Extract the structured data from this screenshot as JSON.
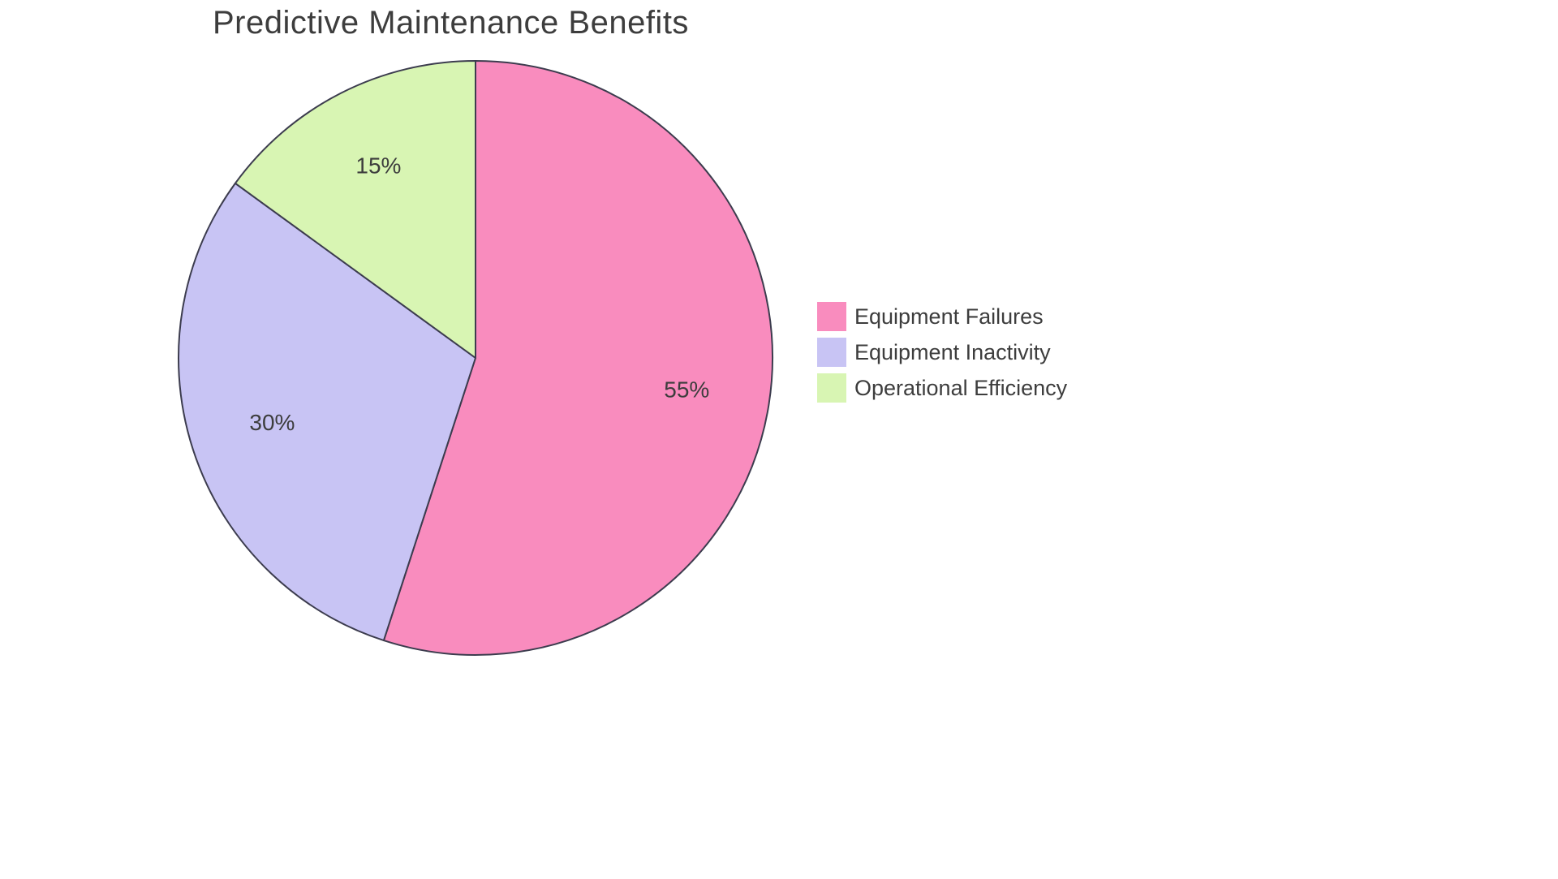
{
  "title": "Predictive Maintenance Benefits",
  "chart_data": {
    "type": "pie",
    "title": "Predictive Maintenance Benefits",
    "labels": [
      "Equipment Failures",
      "Equipment Inactivity",
      "Operational Efficiency"
    ],
    "values": [
      55,
      30,
      15
    ],
    "slice_labels": [
      "55%",
      "30%",
      "15%"
    ],
    "colors": [
      "#F98CBE",
      "#C8C4F4",
      "#D8F5B3"
    ],
    "stroke_color": "#3C3C4E",
    "background": "#FFFFFF",
    "label_color": "#3D3D3D",
    "title_color": "#3D3D3D",
    "legend_position": "right",
    "start_angle_deg": 0,
    "direction": "clockwise"
  }
}
